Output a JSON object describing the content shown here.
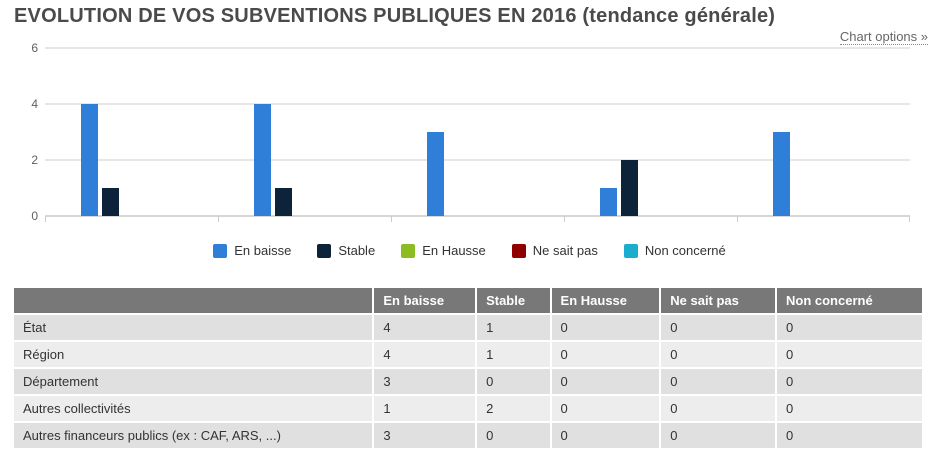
{
  "header": {
    "title": "EVOLUTION DE VOS SUBVENTIONS PUBLIQUES EN 2016 (tendance générale)",
    "chart_options_label": "Chart options »"
  },
  "colors": {
    "en_baisse": "#2f7ed8",
    "stable": "#0d233a",
    "en_hausse": "#8bbc21",
    "ne_sait_pas": "#910000",
    "non_concerne": "#1aadce",
    "grid": "#e7e7e7",
    "axis": "#d6d6d6",
    "table_header_bg": "#787878",
    "row_dark": "#e0e0e0",
    "row_light": "#ededed"
  },
  "chart_data": {
    "type": "bar",
    "title": "EVOLUTION DE VOS SUBVENTIONS PUBLIQUES EN 2016 (tendance générale)",
    "categories": [
      "État",
      "Région",
      "Département",
      "Autres collectivités",
      "Autres financeurs publics (ex : CAF, ARS, ...)"
    ],
    "series": [
      {
        "name": "En baisse",
        "color": "#2f7ed8",
        "values": [
          4,
          4,
          3,
          1,
          3
        ]
      },
      {
        "name": "Stable",
        "color": "#0d233a",
        "values": [
          1,
          1,
          0,
          2,
          0
        ]
      },
      {
        "name": "En Hausse",
        "color": "#8bbc21",
        "values": [
          0,
          0,
          0,
          0,
          0
        ]
      },
      {
        "name": "Ne sait pas",
        "color": "#910000",
        "values": [
          0,
          0,
          0,
          0,
          0
        ]
      },
      {
        "name": "Non concerné",
        "color": "#1aadce",
        "values": [
          0,
          0,
          0,
          0,
          0
        ]
      }
    ],
    "ylim": [
      0,
      6
    ],
    "yticks": [
      0,
      2,
      4,
      6
    ],
    "grid": true,
    "legend_position": "bottom-center",
    "x_axis_category_labels_shown": false
  },
  "table": {
    "column_headers": [
      "",
      "En baisse",
      "Stable",
      "En Hausse",
      "Ne sait pas",
      "Non concerné"
    ],
    "rows": [
      {
        "label": "État",
        "values": [
          4,
          1,
          0,
          0,
          0
        ]
      },
      {
        "label": "Région",
        "values": [
          4,
          1,
          0,
          0,
          0
        ]
      },
      {
        "label": "Département",
        "values": [
          3,
          0,
          0,
          0,
          0
        ]
      },
      {
        "label": "Autres collectivités",
        "values": [
          1,
          2,
          0,
          0,
          0
        ]
      },
      {
        "label": "Autres financeurs publics (ex : CAF, ARS, ...)",
        "values": [
          3,
          0,
          0,
          0,
          0
        ]
      }
    ]
  }
}
